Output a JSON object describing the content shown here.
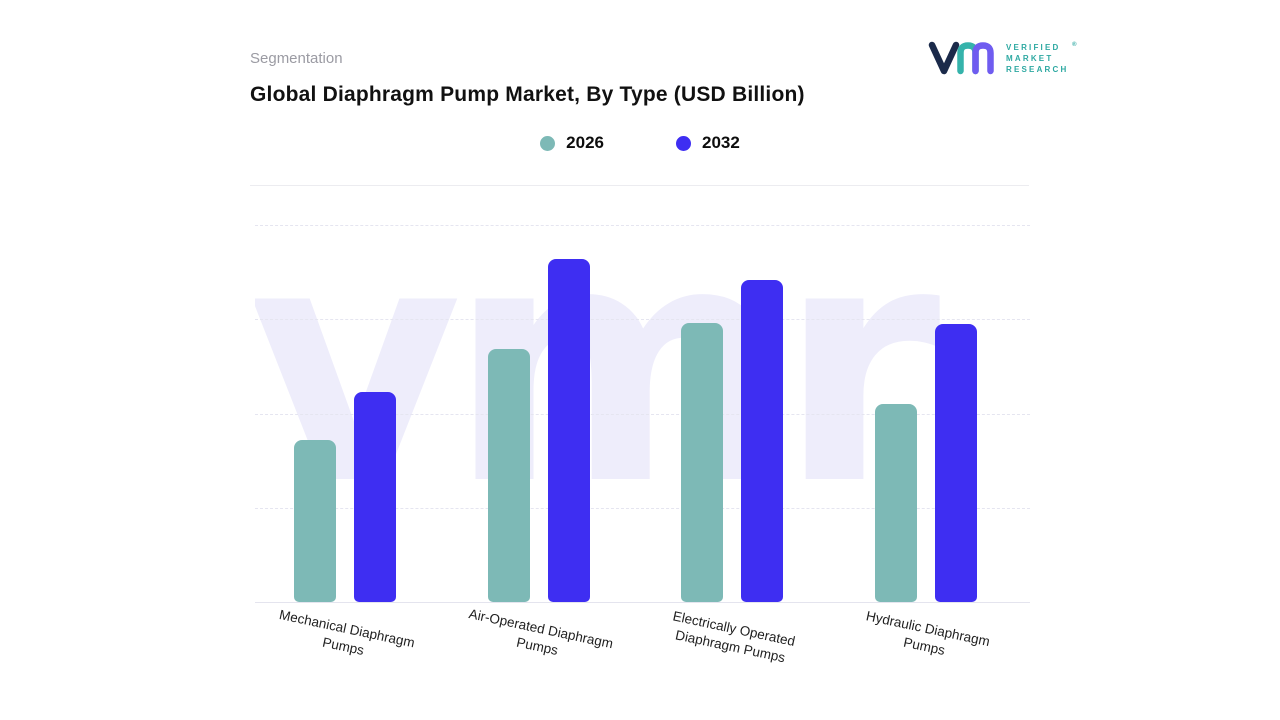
{
  "page": {
    "section_label": "Segmentation",
    "title": "Global Diaphragm Pump Market, By Type (USD Billion)"
  },
  "brand": {
    "lines": [
      "VERIFIED",
      "MARKET",
      "RESEARCH"
    ],
    "registered": "®",
    "text_color": "#2ea9a2",
    "mark_navy": "#1b2a4a",
    "mark_teal": "#35b3ab",
    "mark_purple": "#6f5cf0"
  },
  "chart_data": {
    "type": "bar",
    "title": "Global Diaphragm Pump Market, By Type (USD Billion)",
    "categories": [
      "Mechanical Diaphragm Pumps",
      "Air-Operated Diaphragm Pumps",
      "Electrically Operated Diaphragm Pumps",
      "Hydraulic Diaphragm Pumps"
    ],
    "series": [
      {
        "name": "2026",
        "color": "#7db9b6",
        "values": [
          1.63,
          2.54,
          2.8,
          1.99
        ]
      },
      {
        "name": "2032",
        "color": "#3e2ef2",
        "values": [
          2.11,
          3.45,
          3.24,
          2.79
        ]
      }
    ],
    "xlabel": "",
    "ylabel": "",
    "ylim": [
      0,
      3.8
    ],
    "grid": "horizontal-dashed",
    "legend_position": "top-center",
    "watermark": "vmr"
  }
}
